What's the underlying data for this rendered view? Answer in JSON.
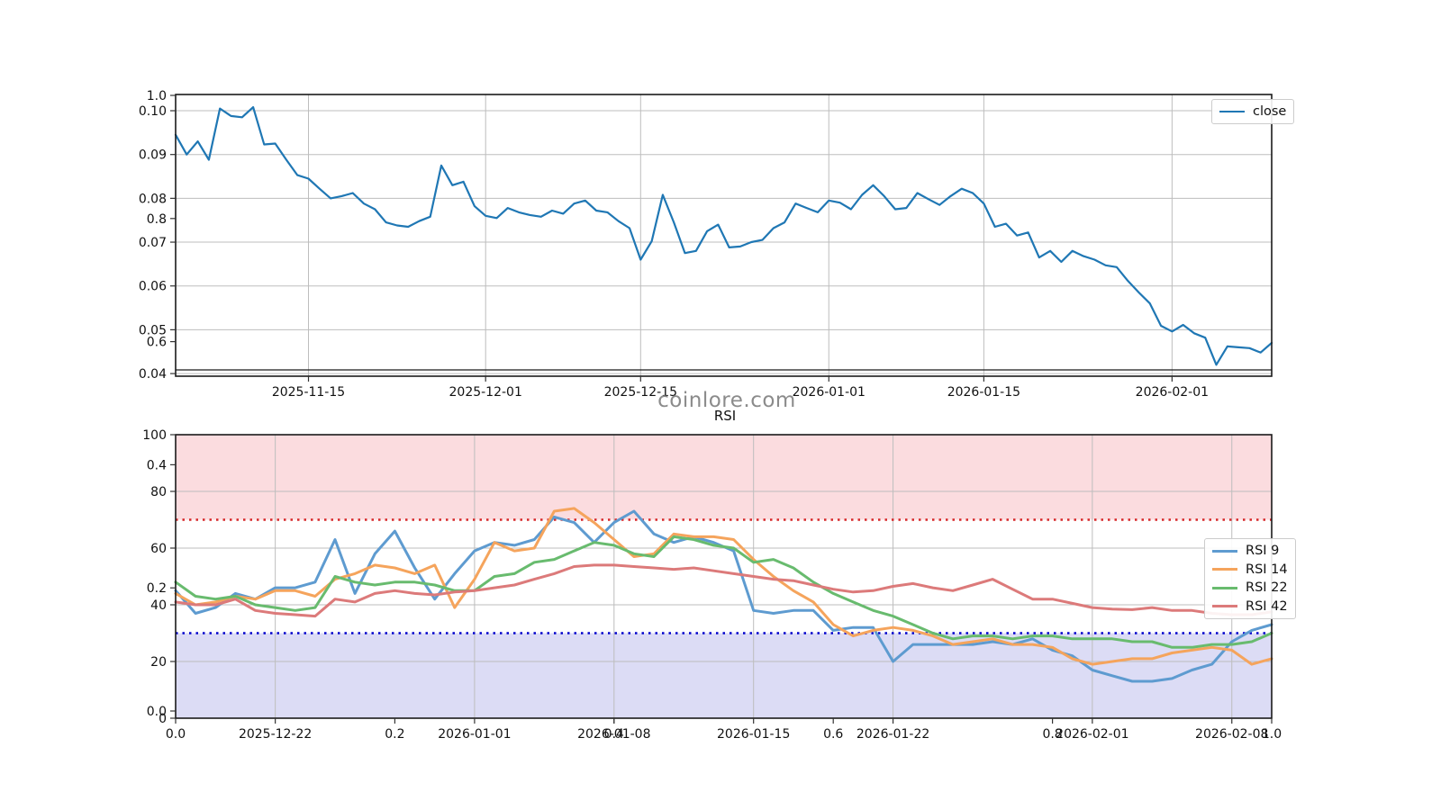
{
  "watermark": "coinlore.com",
  "colors": {
    "close_line": "#1f77b4",
    "rsi9_line": "#5E9BD0",
    "rsi14_line": "#F5A45C",
    "rsi22_line": "#68BB6E",
    "rsi42_line": "#DC7A7A",
    "overbought_band": "#FBDCDF",
    "oversold_band": "#DCDCF5",
    "overbought_dotted": "#D62728",
    "oversold_dotted": "#0000CC",
    "grid": "#BDBDBD",
    "spine": "#1a1a1a",
    "tick_text": "#111111"
  },
  "chart_data": [
    {
      "type": "line",
      "title": "",
      "legend_position": "upper right",
      "x_start_date": "2025-11-03",
      "x_end_date": "2026-02-10",
      "ylim": [
        0.0394,
        0.1037
      ],
      "grid": true,
      "yticks": [
        {
          "label": "0.10",
          "value": 0.1
        },
        {
          "label": "0.09",
          "value": 0.09
        },
        {
          "label": "0.08",
          "value": 0.08
        },
        {
          "label": "0.07",
          "value": 0.07
        },
        {
          "label": "0.06",
          "value": 0.06
        },
        {
          "label": "0.05",
          "value": 0.05
        },
        {
          "label": "0.04",
          "value": 0.04
        }
      ],
      "xticks": [
        {
          "label": "2025-11-15",
          "date": "2025-11-15"
        },
        {
          "label": "2025-12-01",
          "date": "2025-12-01"
        },
        {
          "label": "2025-12-15",
          "date": "2025-12-15"
        },
        {
          "label": "2026-01-01",
          "date": "2026-01-01"
        },
        {
          "label": "2026-01-15",
          "date": "2026-01-15"
        },
        {
          "label": "2026-02-01",
          "date": "2026-02-01"
        }
      ],
      "series": [
        {
          "name": "close",
          "color_key": "close_line",
          "start_date": "2025-11-03",
          "values": [
            0.0945,
            0.09,
            0.093,
            0.0888,
            0.1005,
            0.0988,
            0.0985,
            0.1008,
            0.0923,
            0.0925,
            0.0888,
            0.0853,
            0.0845,
            0.0822,
            0.08,
            0.0805,
            0.0812,
            0.0788,
            0.0775,
            0.0745,
            0.0738,
            0.0735,
            0.0748,
            0.0758,
            0.0875,
            0.083,
            0.0838,
            0.0782,
            0.076,
            0.0755,
            0.0778,
            0.0768,
            0.0762,
            0.0758,
            0.0772,
            0.0765,
            0.0788,
            0.0795,
            0.0772,
            0.0768,
            0.0748,
            0.0732,
            0.066,
            0.0702,
            0.0808,
            0.0745,
            0.0675,
            0.068,
            0.0725,
            0.074,
            0.0688,
            0.069,
            0.07,
            0.0705,
            0.0732,
            0.0745,
            0.0788,
            0.0778,
            0.0768,
            0.0795,
            0.079,
            0.0775,
            0.0808,
            0.083,
            0.0805,
            0.0775,
            0.0778,
            0.0812,
            0.0798,
            0.0785,
            0.0805,
            0.0822,
            0.0812,
            0.0788,
            0.0735,
            0.0742,
            0.0715,
            0.0722,
            0.0665,
            0.068,
            0.0655,
            0.068,
            0.0668,
            0.066,
            0.0647,
            0.0643,
            0.0612,
            0.0585,
            0.056,
            0.0509,
            0.0496,
            0.0511,
            0.0492,
            0.0482,
            0.042,
            0.0462,
            0.046,
            0.0458,
            0.0448,
            0.047
          ]
        }
      ]
    },
    {
      "type": "line",
      "title": "RSI",
      "legend_position": "right",
      "x_start_date": "2025-12-17",
      "x_end_date": "2026-02-10",
      "ylim": [
        0,
        100
      ],
      "grid": true,
      "overbought_level": 70,
      "oversold_level": 30,
      "yticks": [
        {
          "label": "100",
          "value": 100
        },
        {
          "label": "80",
          "value": 80
        },
        {
          "label": "60",
          "value": 60
        },
        {
          "label": "40",
          "value": 40
        },
        {
          "label": "20",
          "value": 20
        },
        {
          "label": "0",
          "value": 0
        }
      ],
      "xticks": [
        {
          "label": "2025-12-22",
          "date": "2025-12-22"
        },
        {
          "label": "2026-01-01",
          "date": "2026-01-01"
        },
        {
          "label": "2026-01-08",
          "date": "2026-01-08"
        },
        {
          "label": "2026-01-15",
          "date": "2026-01-15"
        },
        {
          "label": "2026-01-22",
          "date": "2026-01-22"
        },
        {
          "label": "2026-02-01",
          "date": "2026-02-01"
        },
        {
          "label": "2026-02-08",
          "date": "2026-02-08"
        }
      ],
      "series": [
        {
          "name": "RSI 9",
          "color_key": "rsi9_line",
          "start_date": "2025-12-17",
          "values": [
            45,
            37,
            39,
            44,
            42,
            46,
            46,
            48,
            63,
            44,
            58,
            66,
            53,
            42,
            51,
            59,
            62,
            61,
            63,
            71,
            69,
            62,
            69,
            73,
            65,
            62,
            64,
            62,
            59,
            38,
            37,
            38,
            38,
            31,
            32,
            32,
            20,
            26,
            26,
            26,
            26,
            27,
            26,
            28,
            24,
            22,
            17,
            15,
            13,
            13,
            14,
            17,
            19,
            27,
            31,
            33
          ]
        },
        {
          "name": "RSI 14",
          "color_key": "rsi14_line",
          "start_date": "2025-12-17",
          "values": [
            44,
            40,
            41,
            43,
            42,
            45,
            45,
            43,
            49,
            51,
            54,
            53,
            51,
            54,
            39,
            49,
            62,
            59,
            60,
            73,
            74,
            69,
            63,
            57,
            58,
            65,
            64,
            64,
            63,
            56,
            50,
            45,
            41,
            33,
            29,
            31,
            32,
            31,
            29,
            26,
            27,
            28,
            26,
            26,
            25,
            21,
            19,
            20,
            21,
            21,
            23,
            24,
            25,
            24,
            19,
            21
          ]
        },
        {
          "name": "RSI 22",
          "color_key": "rsi22_line",
          "start_date": "2025-12-17",
          "values": [
            48,
            43,
            42,
            43,
            40,
            39,
            38,
            39,
            50,
            48,
            47,
            48,
            48,
            47,
            45,
            45,
            50,
            51,
            55,
            56,
            59,
            62,
            61,
            58,
            57,
            64,
            63,
            61,
            60,
            55,
            56,
            53,
            48,
            44,
            41,
            38,
            36,
            33,
            30,
            28,
            29,
            29,
            28,
            29,
            29,
            28,
            28,
            28,
            27,
            27,
            25,
            25,
            26,
            26,
            27,
            30
          ]
        },
        {
          "name": "RSI 42",
          "color_key": "rsi42_line",
          "start_date": "2025-12-17",
          "values": [
            41,
            40,
            40,
            42,
            38,
            37,
            36.5,
            36,
            42,
            41,
            44,
            45,
            44,
            43.5,
            44.5,
            45,
            46,
            47,
            49,
            51,
            53.5,
            54,
            54,
            53.5,
            53,
            52.5,
            53,
            52,
            51,
            50,
            49,
            48.5,
            47,
            45.5,
            44.5,
            45,
            46.5,
            47.5,
            46,
            45,
            47,
            49,
            45.5,
            42,
            42,
            40.5,
            39,
            38.5,
            38.3,
            39,
            38,
            38,
            37,
            36.5,
            36.5,
            37.5
          ]
        }
      ]
    }
  ],
  "overlay_axis": {
    "yticks": [
      "1.0",
      "0.8",
      "0.6",
      "0.4",
      "0.2",
      "0.0"
    ],
    "xticks": [
      "0.0",
      "0.2",
      "0.4",
      "0.6",
      "0.8",
      "1.0"
    ]
  }
}
